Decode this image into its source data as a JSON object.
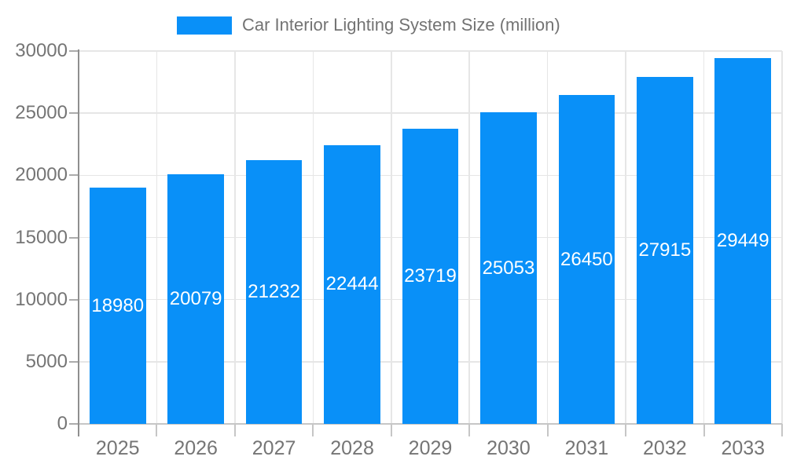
{
  "colors": {
    "bar": "#0990f8",
    "grid": "#e6e6e6",
    "axis_y": "#8f8f8f",
    "tick_y": "#ababab",
    "tick_x": "#c6c6c6",
    "label_text": "#757575",
    "legend_text": "#737373",
    "value_text": "#ffffff"
  },
  "chart_data": {
    "type": "bar",
    "title": "",
    "categories": [
      "2025",
      "2026",
      "2027",
      "2028",
      "2029",
      "2030",
      "2031",
      "2032",
      "2033"
    ],
    "series": [
      {
        "name": "Car Interior Lighting System Size (million)",
        "color": "#0990f8",
        "values": [
          18980,
          20079,
          21232,
          22444,
          23719,
          25053,
          26450,
          27915,
          29449
        ]
      }
    ],
    "xlabel": "",
    "ylabel": "",
    "ylim": [
      0,
      30000
    ],
    "yticks": [
      0,
      5000,
      10000,
      15000,
      20000,
      25000,
      30000
    ],
    "grid": true,
    "legend_position": "top-center",
    "value_labels": "inside-center"
  }
}
